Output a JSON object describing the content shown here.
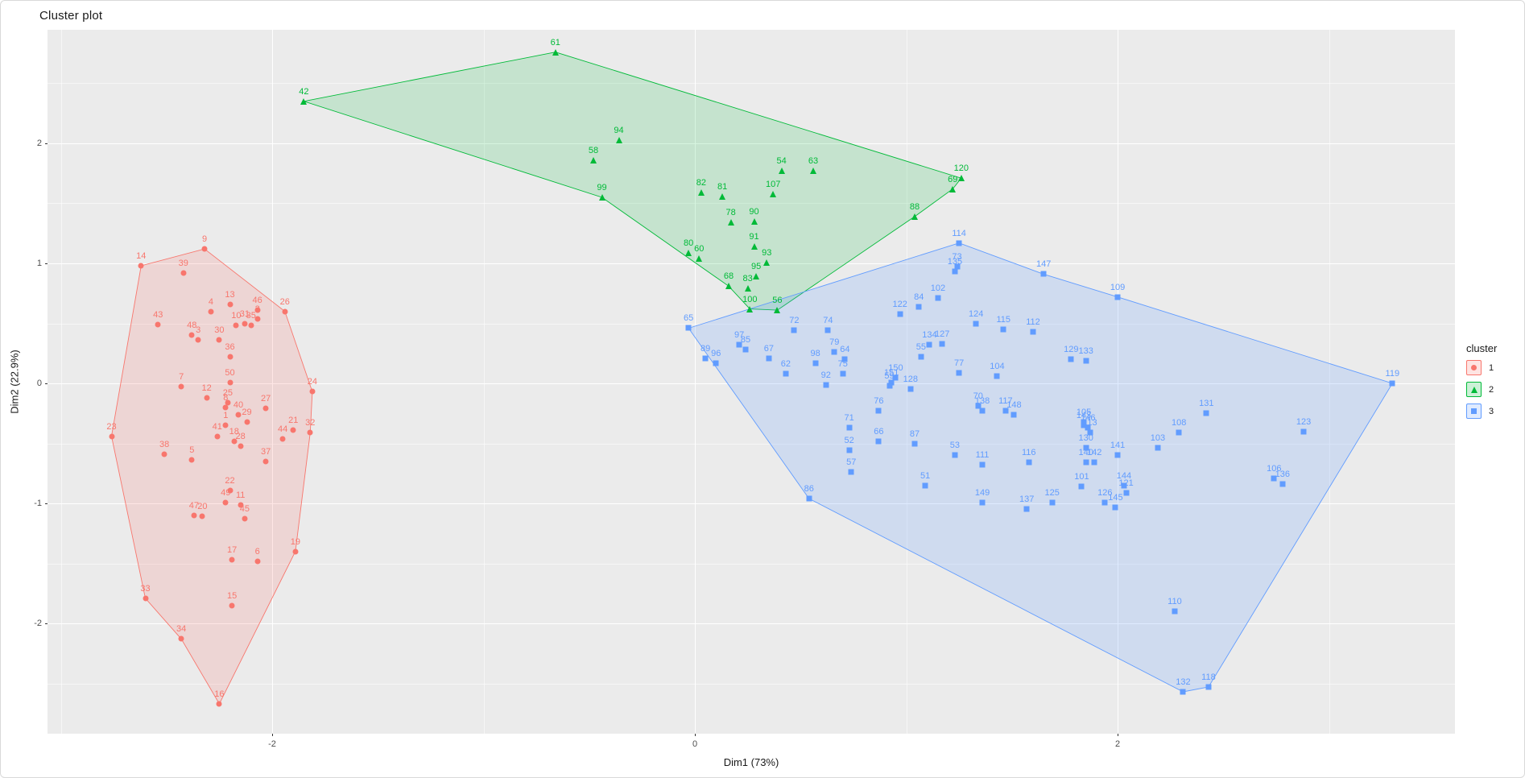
{
  "title": "Cluster plot",
  "axes": {
    "x": {
      "label": "Dim1 (73%)",
      "domain": [
        -3.063,
        3.596
      ],
      "major_ticks": [
        -2,
        0,
        2
      ],
      "minor_ticks": [
        -3,
        -1,
        1,
        3
      ]
    },
    "y": {
      "label": "Dim2 (22.9%)",
      "domain": [
        -2.919,
        2.946
      ],
      "major_ticks": [
        -2,
        -1,
        0,
        1,
        2
      ],
      "minor_ticks": [
        -2.5,
        -1.5,
        -0.5,
        0.5,
        1.5,
        2.5
      ]
    }
  },
  "legend": {
    "title": "cluster",
    "items": [
      {
        "label": "1",
        "color": "#F8766D",
        "shape": "circle"
      },
      {
        "label": "2",
        "color": "#00BA38",
        "shape": "triangle"
      },
      {
        "label": "3",
        "color": "#619CFF",
        "shape": "square"
      }
    ]
  },
  "chart_data": {
    "type": "scatter",
    "title": "Cluster plot",
    "xlabel": "Dim1 (73%)",
    "ylabel": "Dim2 (22.9%)",
    "grid": true,
    "legend_position": "right",
    "points_format": [
      "id",
      "x",
      "y"
    ],
    "clusters": [
      {
        "name": "1",
        "color": "#F8766D",
        "fill": "rgba(248,118,109,0.18)",
        "shape": "circle",
        "points": [
          [
            "9",
            -2.32,
            1.12
          ],
          [
            "14",
            -2.62,
            0.98
          ],
          [
            "39",
            -2.42,
            0.92
          ],
          [
            "13",
            -2.2,
            0.66
          ],
          [
            "46",
            -2.07,
            0.61
          ],
          [
            "2",
            -2.07,
            0.54
          ],
          [
            "26",
            -1.94,
            0.6
          ],
          [
            "4",
            -2.29,
            0.6
          ],
          [
            "43",
            -2.54,
            0.49
          ],
          [
            "48",
            -2.38,
            0.4
          ],
          [
            "3",
            -2.35,
            0.36
          ],
          [
            "30",
            -2.25,
            0.36
          ],
          [
            "10",
            -2.17,
            0.48
          ],
          [
            "31",
            -2.13,
            0.5
          ],
          [
            "35",
            -2.1,
            0.48
          ],
          [
            "36",
            -2.2,
            0.22
          ],
          [
            "50",
            -2.2,
            0.01
          ],
          [
            "7",
            -2.43,
            -0.03
          ],
          [
            "12",
            -2.31,
            -0.12
          ],
          [
            "25",
            -2.21,
            -0.16
          ],
          [
            "8",
            -2.22,
            -0.2
          ],
          [
            "40",
            -2.16,
            -0.26
          ],
          [
            "29",
            -2.12,
            -0.32
          ],
          [
            "27",
            -2.03,
            -0.21
          ],
          [
            "24",
            -1.81,
            -0.07
          ],
          [
            "1",
            -2.22,
            -0.35
          ],
          [
            "41",
            -2.26,
            -0.44
          ],
          [
            "18",
            -2.18,
            -0.48
          ],
          [
            "28",
            -2.15,
            -0.52
          ],
          [
            "44",
            -1.95,
            -0.46
          ],
          [
            "21",
            -1.9,
            -0.39
          ],
          [
            "32",
            -1.82,
            -0.41
          ],
          [
            "23",
            -2.76,
            -0.44
          ],
          [
            "38",
            -2.51,
            -0.59
          ],
          [
            "5",
            -2.38,
            -0.64
          ],
          [
            "37",
            -2.03,
            -0.65
          ],
          [
            "22",
            -2.2,
            -0.89
          ],
          [
            "49",
            -2.22,
            -0.99
          ],
          [
            "11",
            -2.15,
            -1.01
          ],
          [
            "47",
            -2.37,
            -1.1
          ],
          [
            "20",
            -2.33,
            -1.11
          ],
          [
            "45",
            -2.13,
            -1.13
          ],
          [
            "17",
            -2.19,
            -1.47
          ],
          [
            "6",
            -2.07,
            -1.48
          ],
          [
            "19",
            -1.89,
            -1.4
          ],
          [
            "33",
            -2.6,
            -1.79
          ],
          [
            "15",
            -2.19,
            -1.85
          ],
          [
            "34",
            -2.43,
            -2.13
          ],
          [
            "16",
            -2.25,
            -2.67
          ]
        ],
        "hull": [
          "9",
          "26",
          "24",
          "32",
          "19",
          "16",
          "34",
          "33",
          "23",
          "14"
        ]
      },
      {
        "name": "2",
        "color": "#00BA38",
        "fill": "rgba(0,186,56,0.16)",
        "shape": "triangle",
        "points": [
          [
            "42",
            -1.85,
            2.35
          ],
          [
            "61",
            -0.66,
            2.76
          ],
          [
            "94",
            -0.36,
            2.03
          ],
          [
            "58",
            -0.48,
            1.86
          ],
          [
            "99",
            -0.44,
            1.55
          ],
          [
            "82",
            0.03,
            1.59
          ],
          [
            "81",
            0.13,
            1.56
          ],
          [
            "107",
            0.37,
            1.58
          ],
          [
            "54",
            0.41,
            1.77
          ],
          [
            "63",
            0.56,
            1.77
          ],
          [
            "120",
            1.26,
            1.71
          ],
          [
            "69",
            1.22,
            1.62
          ],
          [
            "88",
            1.04,
            1.39
          ],
          [
            "78",
            0.17,
            1.34
          ],
          [
            "90",
            0.28,
            1.35
          ],
          [
            "91",
            0.28,
            1.14
          ],
          [
            "93",
            0.34,
            1.01
          ],
          [
            "95",
            0.29,
            0.89
          ],
          [
            "80",
            -0.03,
            1.09
          ],
          [
            "60",
            0.02,
            1.04
          ],
          [
            "68",
            0.16,
            0.81
          ],
          [
            "83",
            0.25,
            0.79
          ],
          [
            "100",
            0.26,
            0.62
          ],
          [
            "56",
            0.39,
            0.61
          ]
        ],
        "hull": [
          "61",
          "120",
          "69",
          "88",
          "56",
          "100",
          "68",
          "99",
          "42"
        ]
      },
      {
        "name": "3",
        "color": "#619CFF",
        "fill": "rgba(97,156,255,0.20)",
        "shape": "square",
        "points": [
          [
            "65",
            -0.03,
            0.46
          ],
          [
            "89",
            0.05,
            0.21
          ],
          [
            "96",
            0.1,
            0.17
          ],
          [
            "97",
            0.21,
            0.32
          ],
          [
            "85",
            0.24,
            0.28
          ],
          [
            "72",
            0.47,
            0.44
          ],
          [
            "74",
            0.63,
            0.44
          ],
          [
            "67",
            0.35,
            0.21
          ],
          [
            "62",
            0.43,
            0.08
          ],
          [
            "98",
            0.57,
            0.17
          ],
          [
            "79",
            0.66,
            0.26
          ],
          [
            "64",
            0.71,
            0.2
          ],
          [
            "75",
            0.7,
            0.08
          ],
          [
            "92",
            0.62,
            -0.01
          ],
          [
            "122",
            0.97,
            0.58
          ],
          [
            "84",
            1.06,
            0.64
          ],
          [
            "102",
            1.15,
            0.71
          ],
          [
            "135",
            1.23,
            0.93
          ],
          [
            "73",
            1.24,
            0.97
          ],
          [
            "114",
            1.25,
            1.17
          ],
          [
            "147",
            1.65,
            0.91
          ],
          [
            "109",
            2.0,
            0.72
          ],
          [
            "124",
            1.33,
            0.5
          ],
          [
            "115",
            1.46,
            0.45
          ],
          [
            "112",
            1.6,
            0.43
          ],
          [
            "127",
            1.17,
            0.33
          ],
          [
            "134",
            1.11,
            0.32
          ],
          [
            "55",
            1.07,
            0.22
          ],
          [
            "129",
            1.78,
            0.2
          ],
          [
            "133",
            1.85,
            0.19
          ],
          [
            "77",
            1.25,
            0.09
          ],
          [
            "104",
            1.43,
            0.06
          ],
          [
            "150",
            0.95,
            0.05
          ],
          [
            "151",
            0.93,
            0.01
          ],
          [
            "59",
            0.92,
            -0.02
          ],
          [
            "128",
            1.02,
            -0.05
          ],
          [
            "76",
            0.87,
            -0.23
          ],
          [
            "117",
            1.47,
            -0.23
          ],
          [
            "148",
            1.51,
            -0.26
          ],
          [
            "70",
            1.34,
            -0.19
          ],
          [
            "138",
            1.36,
            -0.23
          ],
          [
            "105",
            1.84,
            -0.32
          ],
          [
            "143",
            1.84,
            -0.35
          ],
          [
            "146",
            1.86,
            -0.37
          ],
          [
            "113",
            1.87,
            -0.41
          ],
          [
            "130",
            1.85,
            -0.54
          ],
          [
            "140",
            1.85,
            -0.66
          ],
          [
            "142",
            1.89,
            -0.66
          ],
          [
            "141",
            2.0,
            -0.6
          ],
          [
            "103",
            2.19,
            -0.54
          ],
          [
            "108",
            2.29,
            -0.41
          ],
          [
            "131",
            2.42,
            -0.25
          ],
          [
            "123",
            2.88,
            -0.4
          ],
          [
            "106",
            2.74,
            -0.79
          ],
          [
            "136",
            2.78,
            -0.84
          ],
          [
            "101",
            1.83,
            -0.86
          ],
          [
            "144",
            2.03,
            -0.85
          ],
          [
            "121",
            2.04,
            -0.91
          ],
          [
            "126",
            1.94,
            -0.99
          ],
          [
            "145",
            1.99,
            -1.03
          ],
          [
            "125",
            1.69,
            -0.99
          ],
          [
            "137",
            1.57,
            -1.05
          ],
          [
            "149",
            1.36,
            -0.99
          ],
          [
            "116",
            1.58,
            -0.66
          ],
          [
            "111",
            1.36,
            -0.68
          ],
          [
            "53",
            1.23,
            -0.6
          ],
          [
            "87",
            1.04,
            -0.5
          ],
          [
            "66",
            0.87,
            -0.48
          ],
          [
            "71",
            0.73,
            -0.37
          ],
          [
            "52",
            0.73,
            -0.56
          ],
          [
            "57",
            0.74,
            -0.74
          ],
          [
            "51",
            1.09,
            -0.85
          ],
          [
            "86",
            0.54,
            -0.96
          ],
          [
            "110",
            2.27,
            -1.9
          ],
          [
            "132",
            2.31,
            -2.57
          ],
          [
            "118",
            2.43,
            -2.53
          ],
          [
            "119",
            3.3,
            0.0
          ]
        ],
        "hull": [
          "65",
          "114",
          "147",
          "109",
          "119",
          "118",
          "132",
          "86"
        ]
      }
    ]
  }
}
